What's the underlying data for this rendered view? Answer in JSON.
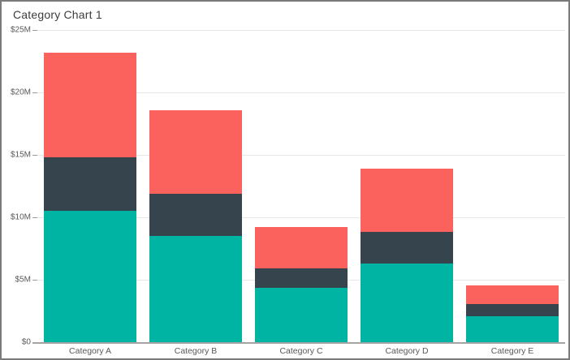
{
  "title": "Category Chart 1",
  "colors": {
    "series_teal": "#00B4A4",
    "series_dark": "#36444D",
    "series_coral": "#FC625D",
    "gridline": "#e7e7e7",
    "axis_line": "#a3a3a3",
    "tick_text": "#595959",
    "title_text": "#3d3d3d",
    "frame_border": "#7a7a7a"
  },
  "chart_data": {
    "type": "bar",
    "stacked": true,
    "title": "Category Chart 1",
    "xlabel": "",
    "ylabel": "",
    "units": "USD millions",
    "categories": [
      "Category A",
      "Category B",
      "Category C",
      "Category D",
      "Category E"
    ],
    "series": [
      {
        "name": "teal-bottom-series",
        "color": "#00B4A4",
        "values": [
          10.5,
          8.5,
          4.35,
          6.3,
          2.1
        ]
      },
      {
        "name": "dark-middle-series",
        "color": "#36444D",
        "values": [
          4.3,
          3.4,
          1.55,
          2.5,
          0.95
        ]
      },
      {
        "name": "coral-top-series",
        "color": "#FC625D",
        "values": [
          8.4,
          6.7,
          3.3,
          5.1,
          1.5
        ]
      }
    ],
    "totals": [
      23.2,
      18.6,
      9.2,
      13.9,
      4.55
    ],
    "ylim": [
      0,
      25
    ],
    "y_ticks": [
      {
        "label": "$25M",
        "value": 25
      },
      {
        "label": "$20M",
        "value": 20
      },
      {
        "label": "$15M",
        "value": 15
      },
      {
        "label": "$10M",
        "value": 10
      },
      {
        "label": "$5M",
        "value": 5
      },
      {
        "label": "$0",
        "value": 0
      }
    ],
    "grid": true,
    "legend": "none"
  }
}
